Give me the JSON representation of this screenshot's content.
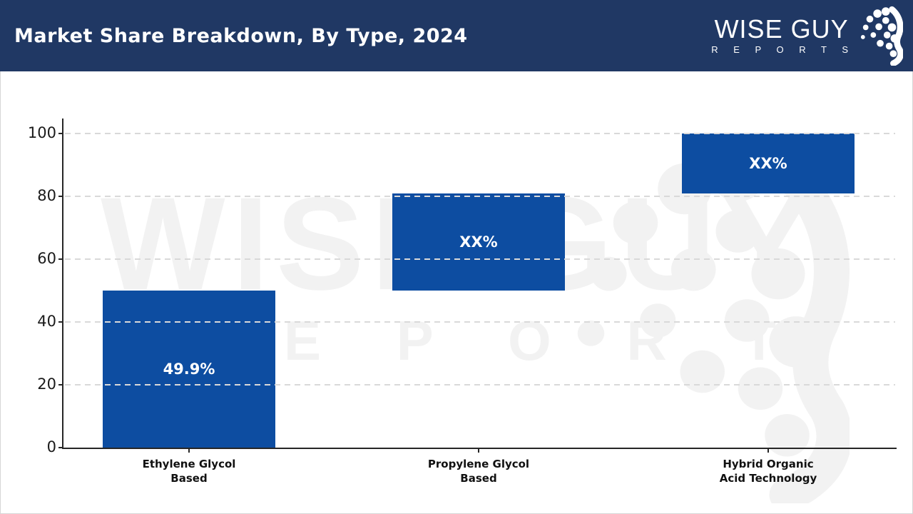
{
  "header": {
    "title": "Market Share Breakdown, By Type, 2024",
    "logo": {
      "line1": "WISE GUY",
      "line2": "R E P O R T S"
    }
  },
  "watermark": {
    "line1": "WISE GUY",
    "line2": "R E P O R T S"
  },
  "colors": {
    "header_bg": "#203864",
    "bar_fill": "#0d4da1",
    "grid": "#d9d9d9",
    "axis": "#262626",
    "category_label": "#111111",
    "value_label": "#ffffff",
    "watermark": "#f2f2f2"
  },
  "chart_data": {
    "type": "bar",
    "variant": "floating stacked breakdown (each bar starts where previous ends)",
    "title": "Market Share Breakdown, By Type, 2024",
    "xlabel": "",
    "ylabel": "",
    "ylim": [
      0,
      105
    ],
    "yticks": [
      0,
      20,
      40,
      60,
      80,
      100
    ],
    "grid": "horizontal dashed, drawn over bars",
    "legend": "none",
    "categories": [
      "Ethylene Glycol\nBased",
      "Propylene Glycol\nBased",
      "Hybrid Organic\nAcid Technology"
    ],
    "bars": [
      {
        "category": "Ethylene Glycol Based",
        "start": 0,
        "end": 49.9,
        "value_label": "49.9%"
      },
      {
        "category": "Propylene Glycol Based",
        "start": 49.9,
        "end": 81.0,
        "value_label": "XX%"
      },
      {
        "category": "Hybrid Organic Acid Technology",
        "start": 81.0,
        "end": 100.0,
        "value_label": "XX%"
      }
    ]
  }
}
